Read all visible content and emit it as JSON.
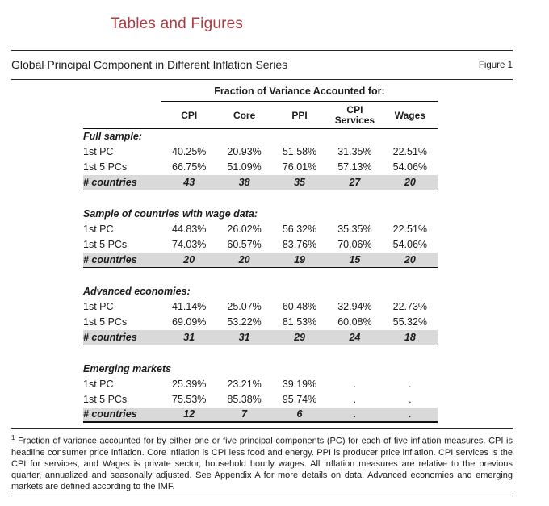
{
  "page": {
    "heading": "Tables and Figures"
  },
  "figure_header": {
    "title": "Global Principal Component in Different Inflation Series",
    "figure_label": "Figure 1"
  },
  "chart_data": {
    "type": "table",
    "title": "Fraction of Variance Accounted for:",
    "column_headers": [
      "CPI",
      "Core",
      "PPI",
      "CPI Services",
      "Wages"
    ],
    "sections": [
      {
        "label": "Full sample:",
        "rows": [
          {
            "label": "1st PC",
            "values": [
              "40.25%",
              "20.93%",
              "51.58%",
              "31.35%",
              "22.51%"
            ],
            "highlight": false
          },
          {
            "label": "1st 5 PCs",
            "values": [
              "66.75%",
              "51.09%",
              "76.01%",
              "57.13%",
              "54.06%"
            ],
            "highlight": false
          },
          {
            "label": "# countries",
            "values": [
              "43",
              "38",
              "35",
              "27",
              "20"
            ],
            "highlight": true
          }
        ]
      },
      {
        "label": "Sample of countries with wage data:",
        "rows": [
          {
            "label": "1st PC",
            "values": [
              "44.83%",
              "26.02%",
              "56.32%",
              "35.35%",
              "22.51%"
            ],
            "highlight": false
          },
          {
            "label": "1st 5 PCs",
            "values": [
              "74.03%",
              "60.57%",
              "83.76%",
              "70.06%",
              "54.06%"
            ],
            "highlight": false
          },
          {
            "label": "# countries",
            "values": [
              "20",
              "20",
              "19",
              "15",
              "20"
            ],
            "highlight": true
          }
        ]
      },
      {
        "label": "Advanced economies:",
        "rows": [
          {
            "label": "1st PC",
            "values": [
              "41.14%",
              "25.07%",
              "60.48%",
              "32.94%",
              "22.73%"
            ],
            "highlight": false
          },
          {
            "label": "1st 5 PCs",
            "values": [
              "69.09%",
              "53.22%",
              "81.53%",
              "60.08%",
              "55.32%"
            ],
            "highlight": false
          },
          {
            "label": "# countries",
            "values": [
              "31",
              "31",
              "29",
              "24",
              "18"
            ],
            "highlight": true
          }
        ]
      },
      {
        "label": "Emerging markets",
        "rows": [
          {
            "label": "1st PC",
            "values": [
              "25.39%",
              "23.21%",
              "39.19%",
              ".",
              "."
            ],
            "highlight": false
          },
          {
            "label": "1st 5 PCs",
            "values": [
              "75.53%",
              "85.38%",
              "95.74%",
              ".",
              "."
            ],
            "highlight": false
          },
          {
            "label": "# countries",
            "values": [
              "12",
              "7",
              "6",
              ".",
              "."
            ],
            "highlight": true
          }
        ]
      }
    ]
  },
  "footnote": {
    "marker": "1",
    "text": "Fraction of variance accounted for by either one or five principal components (PC) for each of five inflation measures. CPI is headline consumer price inflation. Core inflation is CPI less food and energy. PPI is producer price inflation. CPI services is the CPI for services, and Wages is private sector, household hourly wages. All inflation measures are relative to the previous quarter, annualized and seasonally adjusted. See Appendix A for more details on data. Advanced economies and emerging markets are defined according to the IMF."
  },
  "colors": {
    "heading_red": "#b13941",
    "row_highlight": "#d9d9d9",
    "rule": "#1c1c1c"
  }
}
